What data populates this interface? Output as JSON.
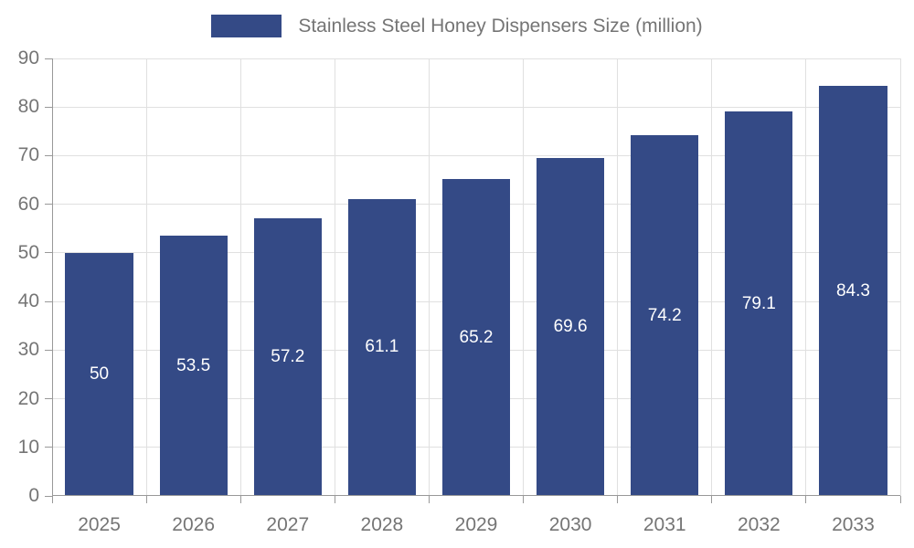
{
  "legend": {
    "label": "Stainless Steel Honey Dispensers Size (million)"
  },
  "chart_data": {
    "type": "bar",
    "title": "Stainless Steel Honey Dispensers Size (million)",
    "categories": [
      "2025",
      "2026",
      "2027",
      "2028",
      "2029",
      "2030",
      "2031",
      "2032",
      "2033"
    ],
    "values": [
      50,
      53.5,
      57.2,
      61.1,
      65.2,
      69.6,
      74.2,
      79.1,
      84.3
    ],
    "xlabel": "",
    "ylabel": "",
    "ylim": [
      0,
      90
    ],
    "ytick_step": 10,
    "grid": true,
    "legend_position": "top-center",
    "colors": {
      "bar": "#344a86",
      "bar_label": "#ffffff",
      "axis_text": "#757575",
      "gridline": "#e0e0e0",
      "axis_line": "#999999",
      "background": "#ffffff"
    }
  }
}
